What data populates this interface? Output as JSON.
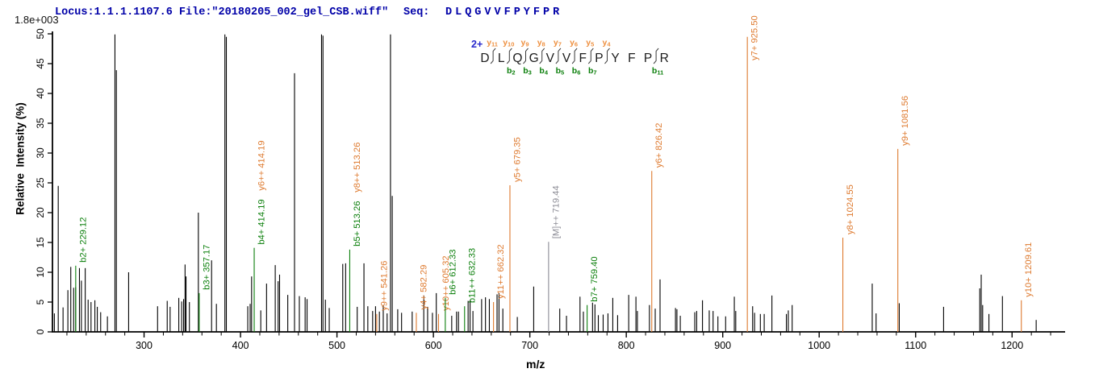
{
  "header": {
    "locus_file": "Locus:1.1.1.1107.6 File:\"20180205_002_gel_CSB.wiff\"",
    "seq_label": "Seq:",
    "sequence": "DLQGVVFPYFPR",
    "intensity_scale": "1.8e+003",
    "text_color": "#0000a8"
  },
  "ladder": {
    "charge_label": "2+",
    "residues": [
      "D",
      "L",
      "Q",
      "G",
      "V",
      "V",
      "F",
      "P",
      "Y",
      "F",
      "P",
      "R"
    ],
    "cleavages": [
      {
        "after_index": 0,
        "y": "y11",
        "b": null
      },
      {
        "after_index": 1,
        "y": "y10",
        "b": "b2"
      },
      {
        "after_index": 2,
        "y": "y9",
        "b": "b3"
      },
      {
        "after_index": 3,
        "y": "y8",
        "b": "b4"
      },
      {
        "after_index": 4,
        "y": "y7",
        "b": "b5"
      },
      {
        "after_index": 5,
        "y": "y6",
        "b": "b6"
      },
      {
        "after_index": 6,
        "y": "y5",
        "b": "b7"
      },
      {
        "after_index": 7,
        "y": "y4",
        "b": null
      },
      {
        "after_index": 10,
        "y": null,
        "b": "b11"
      }
    ],
    "colors": {
      "charge": "#2929cc",
      "y": "#ee9040",
      "b": "#0b7f0b",
      "divider": "#3a3a3a",
      "residue": "#1c1c1c"
    }
  },
  "chart_data": {
    "type": "bar",
    "subtype": "ms2-stick-spectrum",
    "title": "",
    "x_label": "m/z",
    "y_label": "Relative  Intensity (%)",
    "intensity_scale": "1.8e+003",
    "x_range": [
      205,
      1255
    ],
    "y_range": [
      0,
      50
    ],
    "x_major_ticks": [
      300,
      400,
      500,
      600,
      700,
      800,
      900,
      1000,
      1100,
      1200
    ],
    "x_minor_start": 220,
    "x_minor_step": 20,
    "y_ticks": [
      0,
      5,
      10,
      15,
      20,
      25,
      30,
      35,
      40,
      45,
      50
    ],
    "grid": false,
    "series_colors": {
      "b": "#0b7f0b",
      "y": "#de7a2f",
      "M": "#8b8b94",
      "noise": "#000000"
    },
    "annotated_peaks": [
      {
        "mz": 229.12,
        "intensity": 11.1,
        "color": "b",
        "labels": [
          {
            "t": "b2+ 229.12",
            "c": "b"
          }
        ]
      },
      {
        "mz": 357.17,
        "intensity": 6.5,
        "color": "b",
        "labels": [
          {
            "t": "b3+ 357.17",
            "c": "b"
          }
        ]
      },
      {
        "mz": 414.19,
        "intensity": 14.1,
        "color": "b",
        "labels": [
          {
            "t": "b4+ 414.19",
            "c": "b"
          },
          {
            "t": "y6++ 414.19",
            "c": "y"
          }
        ]
      },
      {
        "mz": 513.26,
        "intensity": 13.8,
        "color": "b",
        "labels": [
          {
            "t": "b5+ 513.26",
            "c": "b"
          },
          {
            "t": "y8++ 513.26",
            "c": "y"
          }
        ]
      },
      {
        "mz": 541.26,
        "intensity": 3.0,
        "color": "y",
        "labels": [
          {
            "t": "y9++ 541.26",
            "c": "y"
          }
        ]
      },
      {
        "mz": 582.29,
        "intensity": 3.2,
        "color": "y",
        "labels": [
          {
            "t": "y4+ 582.29",
            "c": "y"
          }
        ]
      },
      {
        "mz": 605.32,
        "intensity": 3.0,
        "color": "y",
        "labels": [
          {
            "t": "y10++ 605.32",
            "c": "y"
          }
        ]
      },
      {
        "mz": 612.33,
        "intensity": 5.7,
        "color": "b",
        "labels": [
          {
            "t": "b6+ 612.33",
            "c": "b"
          }
        ]
      },
      {
        "mz": 632.33,
        "intensity": 4.3,
        "color": "b",
        "labels": [
          {
            "t": "b11++ 632.33",
            "c": "b"
          }
        ]
      },
      {
        "mz": 662.32,
        "intensity": 5.0,
        "color": "y",
        "labels": [
          {
            "t": "y11++ 662.32",
            "c": "y"
          }
        ]
      },
      {
        "mz": 679.35,
        "intensity": 24.6,
        "color": "y",
        "labels": [
          {
            "t": "y5+ 679.35",
            "c": "y"
          }
        ]
      },
      {
        "mz": 719.44,
        "intensity": 15.1,
        "color": "M",
        "labels": [
          {
            "t": "[M]++ 719.44",
            "c": "M"
          }
        ]
      },
      {
        "mz": 759.4,
        "intensity": 4.5,
        "color": "b",
        "labels": [
          {
            "t": "b7+ 759.40",
            "c": "b"
          }
        ]
      },
      {
        "mz": 826.42,
        "intensity": 27.0,
        "color": "y",
        "labels": [
          {
            "t": "y6+ 826.42",
            "c": "y"
          }
        ]
      },
      {
        "mz": 925.5,
        "intensity": 49.5,
        "color": "y",
        "labels": [
          {
            "t": "y7+ 925.50",
            "c": "y"
          }
        ]
      },
      {
        "mz": 1024.55,
        "intensity": 15.8,
        "color": "y",
        "labels": [
          {
            "t": "y8+ 1024.55",
            "c": "y"
          }
        ]
      },
      {
        "mz": 1081.56,
        "intensity": 30.7,
        "color": "y",
        "labels": [
          {
            "t": "y9+ 1081.56",
            "c": "y"
          }
        ]
      },
      {
        "mz": 1209.61,
        "intensity": 5.3,
        "color": "y",
        "labels": [
          {
            "t": "y10+ 1209.61",
            "c": "y"
          }
        ]
      }
    ],
    "noise_peaks": [
      [
        207,
        3.1
      ],
      [
        211,
        24.5
      ],
      [
        216,
        4.1
      ],
      [
        221,
        7.0
      ],
      [
        224,
        10.9
      ],
      [
        227,
        7.4
      ],
      [
        229.1,
        7.5
      ],
      [
        233,
        10.7
      ],
      [
        235,
        8.6
      ],
      [
        239,
        10.7
      ],
      [
        242,
        5.4
      ],
      [
        245,
        5.0
      ],
      [
        249,
        5.3
      ],
      [
        251.5,
        4.2
      ],
      [
        255,
        3.3
      ],
      [
        262,
        2.6
      ],
      [
        269.8,
        49.9
      ],
      [
        271.3,
        43.9
      ],
      [
        284,
        10.0
      ],
      [
        314,
        4.3
      ],
      [
        324,
        5.2
      ],
      [
        327,
        4.2
      ],
      [
        336,
        5.7
      ],
      [
        339,
        5.1
      ],
      [
        341,
        5.5
      ],
      [
        342.5,
        11.3
      ],
      [
        343.5,
        9.3
      ],
      [
        347,
        5.0
      ],
      [
        356.3,
        20.0
      ],
      [
        370,
        12.0
      ],
      [
        375,
        4.7
      ],
      [
        383.8,
        49.9
      ],
      [
        385.3,
        49.5
      ],
      [
        407.5,
        4.3
      ],
      [
        410,
        4.7
      ],
      [
        411.5,
        9.3
      ],
      [
        421,
        3.6
      ],
      [
        427,
        8.1
      ],
      [
        436,
        11.2
      ],
      [
        439,
        8.5
      ],
      [
        440.5,
        9.6
      ],
      [
        449,
        6.2
      ],
      [
        456,
        43.4
      ],
      [
        461,
        6.0
      ],
      [
        467,
        5.8
      ],
      [
        469,
        5.5
      ],
      [
        484,
        49.9
      ],
      [
        485.5,
        49.7
      ],
      [
        488,
        5.4
      ],
      [
        492,
        4.0
      ],
      [
        506,
        11.4
      ],
      [
        509,
        11.5
      ],
      [
        521,
        4.2
      ],
      [
        528,
        11.5
      ],
      [
        532,
        4.3
      ],
      [
        537,
        3.5
      ],
      [
        540,
        4.3
      ],
      [
        544,
        3.4
      ],
      [
        548,
        4.4
      ],
      [
        552,
        3.1
      ],
      [
        555.5,
        49.9
      ],
      [
        557.3,
        22.8
      ],
      [
        563,
        3.8
      ],
      [
        567,
        3.2
      ],
      [
        578,
        3.4
      ],
      [
        590,
        6.1
      ],
      [
        594,
        4.2
      ],
      [
        599,
        3.2
      ],
      [
        603,
        6.5
      ],
      [
        619,
        2.7
      ],
      [
        624,
        3.4
      ],
      [
        626,
        3.4
      ],
      [
        636,
        5.2
      ],
      [
        638,
        5.3
      ],
      [
        641,
        3.5
      ],
      [
        650,
        5.5
      ],
      [
        654,
        5.8
      ],
      [
        658,
        5.5
      ],
      [
        666,
        6.3
      ],
      [
        668,
        6.5
      ],
      [
        672,
        3.9
      ],
      [
        687,
        2.5
      ],
      [
        704,
        7.6
      ],
      [
        731,
        3.9
      ],
      [
        738,
        2.7
      ],
      [
        752,
        5.9
      ],
      [
        755.5,
        3.4
      ],
      [
        765,
        4.9
      ],
      [
        767.5,
        4.6
      ],
      [
        771,
        2.8
      ],
      [
        776,
        2.9
      ],
      [
        781,
        3.1
      ],
      [
        786,
        5.7
      ],
      [
        791,
        2.8
      ],
      [
        802.5,
        6.2
      ],
      [
        810,
        5.9
      ],
      [
        811.5,
        3.5
      ],
      [
        824,
        4.5
      ],
      [
        830,
        3.9
      ],
      [
        835,
        8.8
      ],
      [
        851,
        4.0
      ],
      [
        852.5,
        3.8
      ],
      [
        856,
        2.7
      ],
      [
        871,
        3.3
      ],
      [
        873,
        3.5
      ],
      [
        879,
        5.3
      ],
      [
        886,
        3.6
      ],
      [
        890,
        3.5
      ],
      [
        895,
        2.6
      ],
      [
        903,
        2.6
      ],
      [
        912,
        5.9
      ],
      [
        913.5,
        3.5
      ],
      [
        931,
        4.3
      ],
      [
        933,
        3.2
      ],
      [
        939,
        3.0
      ],
      [
        943,
        3.0
      ],
      [
        951,
        6.1
      ],
      [
        966,
        3.0
      ],
      [
        968,
        3.6
      ],
      [
        972,
        4.5
      ],
      [
        1055,
        8.1
      ],
      [
        1059,
        3.1
      ],
      [
        1083,
        4.8
      ],
      [
        1129,
        4.2
      ],
      [
        1166.5,
        7.3
      ],
      [
        1168,
        9.6
      ],
      [
        1169.5,
        4.5
      ],
      [
        1176,
        3.0
      ],
      [
        1190,
        6.0
      ],
      [
        1225,
        2.0
      ]
    ]
  }
}
